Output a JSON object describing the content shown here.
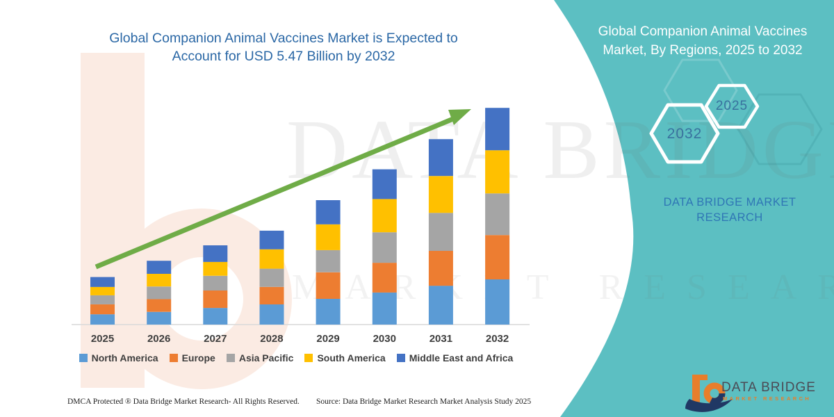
{
  "page": {
    "title": "Global Companion Animal Vaccines Market is Expected to Account for USD 5.47 Billion by 2032"
  },
  "sidebar": {
    "background_color": "#5CBFC2",
    "title": "Global Companion Animal Vaccines Market, By Regions, 2025 to 2032",
    "hexagon_years": [
      "2032",
      "2025"
    ],
    "company_name": "DATA BRIDGE MARKET RESEARCH"
  },
  "watermarks": {
    "primary": "DATA BRIDGE",
    "secondary": "MARKET RESEARCH"
  },
  "chart_data": {
    "type": "bar",
    "stacked": true,
    "unit": "USD Billion",
    "title": "Global Companion Animal Vaccines Market is Expected to Account for USD 5.47 Billion by 2032",
    "categories": [
      "2025",
      "2026",
      "2027",
      "2028",
      "2029",
      "2030",
      "2031",
      "2032"
    ],
    "series": [
      {
        "name": "North America",
        "color": "#5B9BD5",
        "values": [
          0.26,
          0.32,
          0.42,
          0.51,
          0.65,
          0.81,
          0.98,
          1.14
        ]
      },
      {
        "name": "Europe",
        "color": "#ED7D31",
        "values": [
          0.25,
          0.32,
          0.44,
          0.44,
          0.67,
          0.75,
          0.88,
          1.12
        ]
      },
      {
        "name": "Asia Pacific",
        "color": "#A5A5A5",
        "values": [
          0.23,
          0.32,
          0.37,
          0.46,
          0.56,
          0.77,
          0.96,
          1.05
        ]
      },
      {
        "name": "South America",
        "color": "#FFC000",
        "values": [
          0.21,
          0.32,
          0.35,
          0.49,
          0.65,
          0.84,
          0.93,
          1.09
        ]
      },
      {
        "name": "Middle East and Africa",
        "color": "#4472C4",
        "values": [
          0.25,
          0.33,
          0.42,
          0.47,
          0.61,
          0.75,
          0.93,
          1.07
        ]
      }
    ],
    "totals": [
      1.2,
      1.61,
      2.0,
      2.37,
      3.14,
      3.92,
      4.68,
      5.47
    ],
    "ylim": [
      0,
      5.6
    ],
    "gridlines": false,
    "legend_position": "bottom",
    "trend_arrow_color": "#6FAC47",
    "axis_color": "#D9D9D9"
  },
  "logo": {
    "name": "DATA BRIDGE",
    "tagline": "MARKET RESEARCH"
  },
  "footer": {
    "dmca": "DMCA Protected ® Data Bridge Market Research-  All Rights Reserved.",
    "source": "Source: Data Bridge Market Research  Market Analysis Study 2025"
  }
}
